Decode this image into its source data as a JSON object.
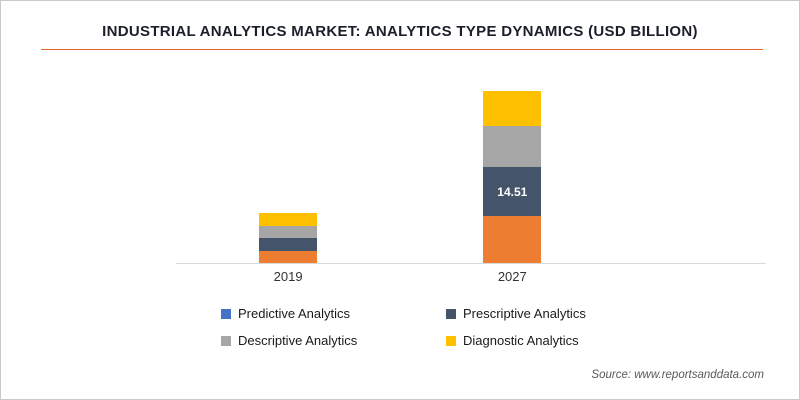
{
  "title": "INDUSTRIAL ANALYTICS MARKET: ANALYTICS TYPE DYNAMICS (USD BILLION)",
  "source": "Source: www.reportsanddata.com",
  "accent_color": "#e8622d",
  "chart_data": {
    "type": "bar",
    "stacked": true,
    "title": "INDUSTRIAL ANALYTICS MARKET: ANALYTICS TYPE DYNAMICS (USD BILLION)",
    "xlabel": "",
    "ylabel": "USD Billion",
    "categories": [
      "2019",
      "2027"
    ],
    "series": [
      {
        "name": "Predictive Analytics",
        "legend_color": "#4472c4",
        "bar_color": "#ed7d31",
        "values": [
          3.7,
          13.9
        ]
      },
      {
        "name": "Prescriptive Analytics",
        "legend_color": "#44546a",
        "bar_color": "#44546a",
        "values": [
          3.6,
          14.51
        ]
      },
      {
        "name": "Descriptive Analytics",
        "legend_color": "#a6a6a6",
        "bar_color": "#a6a6a6",
        "values": [
          3.8,
          12.4
        ]
      },
      {
        "name": "Diagnostic Analytics",
        "legend_color": "#ffc000",
        "bar_color": "#ffc000",
        "values": [
          3.9,
          10.4
        ]
      }
    ],
    "data_labels": [
      {
        "category": "2027",
        "series": "Prescriptive Analytics",
        "text": "14.51"
      }
    ],
    "ylim": [
      0,
      52
    ],
    "grid": false,
    "legend_position": "bottom"
  }
}
